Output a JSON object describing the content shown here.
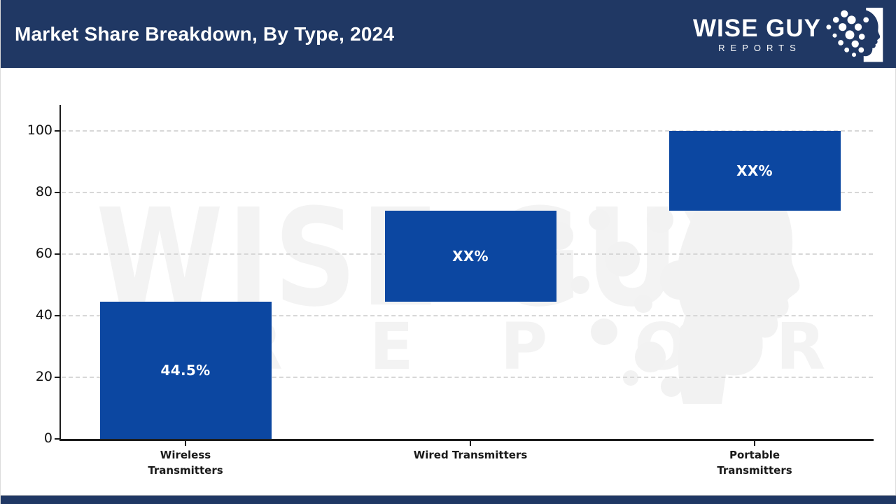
{
  "header": {
    "title": "Market Share Breakdown, By Type, 2024"
  },
  "logo": {
    "line1": "WISE GUY",
    "line2": "REPORTS"
  },
  "watermark": {
    "line1": "WISE GUY",
    "line2": "R E P O R T S"
  },
  "colors": {
    "header_bg": "#203864",
    "footer_bg": "#203864",
    "bar": "#0c47a1",
    "bar_label": "#ffffff",
    "gridline": "#d7d7d7",
    "axis": "#1c1c1c",
    "tick_label": "#111111",
    "watermark": "#f3f3f3"
  },
  "chart_data": {
    "type": "bar",
    "subtype": "floating-segment-waterfall",
    "title": "Market Share Breakdown, By Type, 2024",
    "categories": [
      "Wireless\nTransmitters",
      "Wired Transmitters",
      "Portable\nTransmitters"
    ],
    "series": [
      {
        "name": "Market Share (%)",
        "segments": [
          {
            "category": "Wireless Transmitters",
            "from": 0,
            "to": 44.5,
            "label": "44.5%"
          },
          {
            "category": "Wired Transmitters",
            "from": 44.5,
            "to": 74,
            "label": "XX%"
          },
          {
            "category": "Portable Transmitters",
            "from": 74,
            "to": 100,
            "label": "XX%"
          }
        ]
      }
    ],
    "bar_labels": [
      "44.5%",
      "XX%",
      "XX%"
    ],
    "y_ticks": [
      0,
      20,
      40,
      60,
      80,
      100
    ],
    "ylim": [
      0,
      105
    ],
    "xlabel": "",
    "ylabel": "",
    "grid": "horizontal-dashed",
    "legend": "none"
  }
}
